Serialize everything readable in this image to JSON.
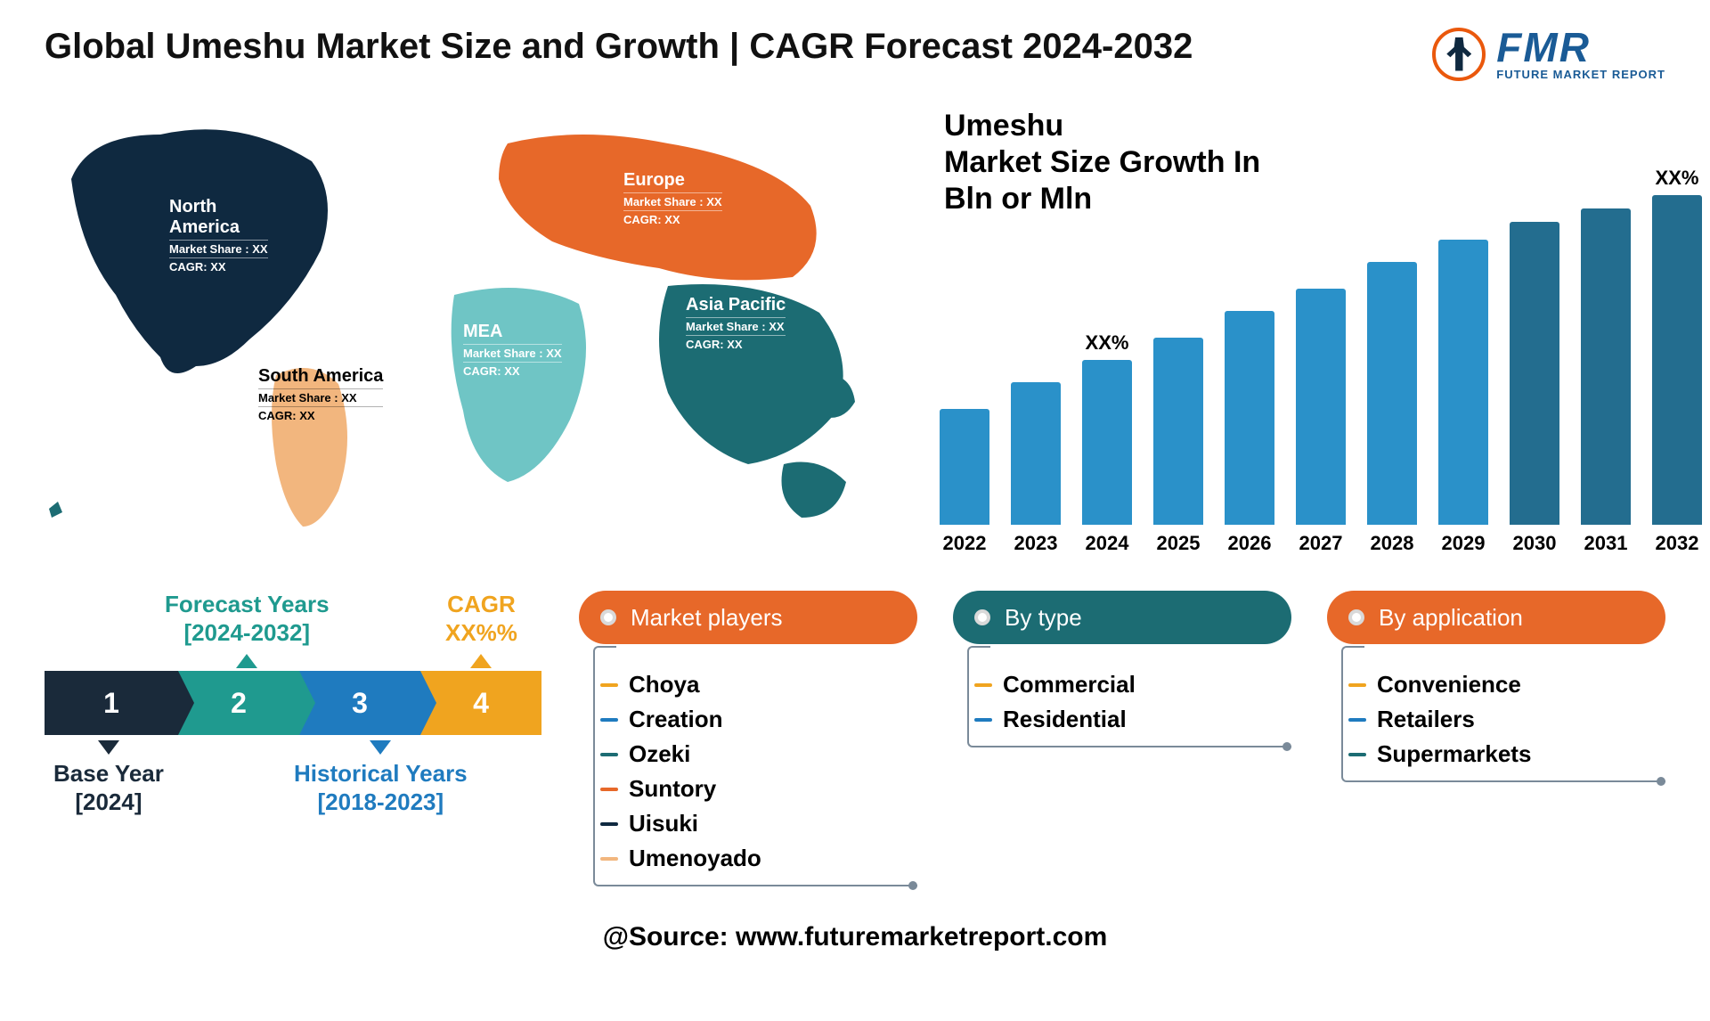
{
  "title": "Global Umeshu Market Size and Growth | CAGR Forecast 2024-2032",
  "logo": {
    "main": "FMR",
    "sub": "FUTURE MARKET REPORT"
  },
  "regions": {
    "north_america": {
      "name": "North\nAmerica",
      "share": "Market Share : XX",
      "cagr": "CAGR: XX",
      "color": "#0f2940"
    },
    "south_america": {
      "name": "South America",
      "share": "Market Share : XX",
      "cagr": "CAGR: XX",
      "color": "#f2b67e"
    },
    "europe": {
      "name": "Europe",
      "share": "Market Share : XX",
      "cagr": "CAGR: XX",
      "color": "#e76829"
    },
    "mea": {
      "name": "MEA",
      "share": "Market Share : XX",
      "cagr": "CAGR: XX",
      "color": "#6fc5c5"
    },
    "asia_pacific": {
      "name": "Asia Pacific",
      "share": "Market Share : XX",
      "cagr": "CAGR: XX",
      "color": "#1c6c73"
    }
  },
  "chart": {
    "title_line1": "Umeshu",
    "title_line2": "Market Size Growth In",
    "title_line3": "Bln or Mln",
    "bar_color": "#2a91c9",
    "dark_bar_color": "#236d8f",
    "years": [
      "2022",
      "2023",
      "2024",
      "2025",
      "2026",
      "2027",
      "2028",
      "2029",
      "2030",
      "2031",
      "2032"
    ],
    "heights": [
      130,
      160,
      185,
      210,
      240,
      265,
      295,
      320,
      340,
      355,
      370
    ],
    "pct_2024": "XX%",
    "pct_2032": "XX%"
  },
  "timeline": {
    "forecast_label": "Forecast Years",
    "forecast_range": "[2024-2032]",
    "forecast_color": "#1f9a8f",
    "cagr_label": "CAGR",
    "cagr_value": "XX%%",
    "cagr_color": "#f0a41f",
    "base_label": "Base Year",
    "base_range": "[2024]",
    "base_color": "#1a2a3a",
    "hist_label": "Historical Years",
    "hist_range": "[2018-2023]",
    "hist_color": "#1f7bbf",
    "segments": [
      {
        "num": "1",
        "color": "#1a2a3a"
      },
      {
        "num": "2",
        "color": "#1f9a8f"
      },
      {
        "num": "3",
        "color": "#1f7bbf"
      },
      {
        "num": "4",
        "color": "#f0a41f"
      }
    ]
  },
  "categories": {
    "players": {
      "title": "Market players",
      "header_color": "#e76829",
      "items": [
        {
          "label": "Choya",
          "color": "#f0a41f"
        },
        {
          "label": "Creation",
          "color": "#1f7bbf"
        },
        {
          "label": "Ozeki",
          "color": "#1c6c73"
        },
        {
          "label": "Suntory",
          "color": "#e76829"
        },
        {
          "label": "Uisuki",
          "color": "#0f2940"
        },
        {
          "label": "Umenoyado",
          "color": "#f2b67e"
        }
      ]
    },
    "type": {
      "title": "By type",
      "header_color": "#1c6c73",
      "items": [
        {
          "label": "Commercial",
          "color": "#f0a41f"
        },
        {
          "label": "Residential",
          "color": "#1f7bbf"
        }
      ]
    },
    "application": {
      "title": "By application",
      "header_color": "#e76829",
      "items": [
        {
          "label": "Convenience",
          "color": "#f0a41f"
        },
        {
          "label": "Retailers",
          "color": "#1f7bbf"
        },
        {
          "label": "Supermarkets",
          "color": "#1c6c73"
        }
      ]
    }
  },
  "source": "@Source: www.futuremarketreport.com"
}
